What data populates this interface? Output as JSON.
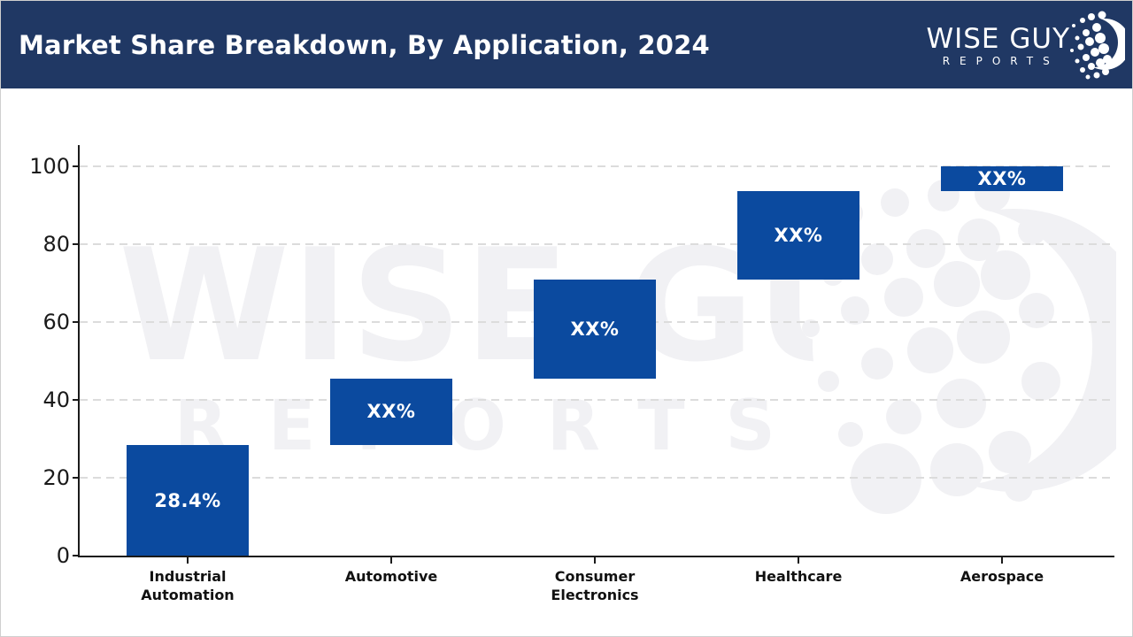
{
  "header": {
    "title": "Market Share Breakdown, By Application, 2024",
    "logo": {
      "line1": "WISE GUY",
      "line2": "REPORTS"
    }
  },
  "watermark": {
    "line1": "WISE GUY",
    "line2": "REPORTS"
  },
  "chart_data": {
    "type": "bar",
    "subtype": "waterfall",
    "title": "Market Share Breakdown, By Application, 2024",
    "categories": [
      "Industrial\nAutomation",
      "Automotive",
      "Consumer\nElectronics",
      "Healthcare",
      "Aerospace"
    ],
    "segments": [
      {
        "category": "Industrial Automation",
        "start": 0,
        "end": 28.4,
        "label": "28.4%"
      },
      {
        "category": "Automotive",
        "start": 28.4,
        "end": 45.5,
        "label": "XX%"
      },
      {
        "category": "Consumer Electronics",
        "start": 45.5,
        "end": 70.9,
        "label": "XX%"
      },
      {
        "category": "Healthcare",
        "start": 70.9,
        "end": 93.6,
        "label": "XX%"
      },
      {
        "category": "Aerospace",
        "start": 93.6,
        "end": 100,
        "label": "XX%"
      }
    ],
    "xlabel": "",
    "ylabel": "",
    "ylim": [
      0,
      100
    ],
    "yticks": [
      0,
      20,
      40,
      60,
      80,
      100
    ],
    "grid": "dashed-horizontal",
    "legend": "none",
    "bar_color": "#0b4a9f",
    "bar_label_color": "#ffffff"
  },
  "colors": {
    "header_bg": "#203864",
    "bar": "#0b4a9f",
    "grid": "#dcdcdc",
    "axis": "#1a1a1a",
    "watermark": "#f1f1f4"
  }
}
